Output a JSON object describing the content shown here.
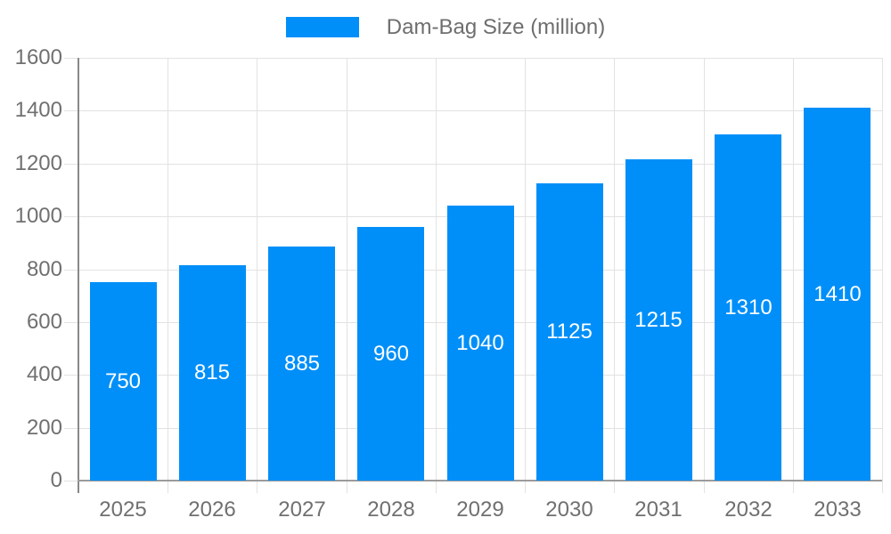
{
  "chart_data": {
    "type": "bar",
    "title": "Dam-Bag Size (million)",
    "categories": [
      "2025",
      "2026",
      "2027",
      "2028",
      "2029",
      "2030",
      "2031",
      "2032",
      "2033"
    ],
    "values": [
      750,
      815,
      885,
      960,
      1040,
      1125,
      1215,
      1310,
      1410
    ],
    "series_name": "Dam-Bag Size (million)",
    "xlabel": "",
    "ylabel": "",
    "ylim": [
      0,
      1600
    ],
    "yticks": [
      0,
      200,
      400,
      600,
      800,
      1000,
      1200,
      1400,
      1600
    ],
    "grid": true,
    "value_labels_shown": true,
    "legend": {
      "position": "top",
      "label": "Dam-Bag Size (million)",
      "swatch_color": "#008ff8"
    }
  },
  "colors": {
    "background": "#ffffff",
    "bar": "#008ff8",
    "grid_line": "#e2e2e2",
    "axis_line": "#898989",
    "zero_line": "#9b9b9b",
    "tick_text": "#707070",
    "legend_text": "#6e6e6e",
    "value_text": "#ffffff"
  }
}
